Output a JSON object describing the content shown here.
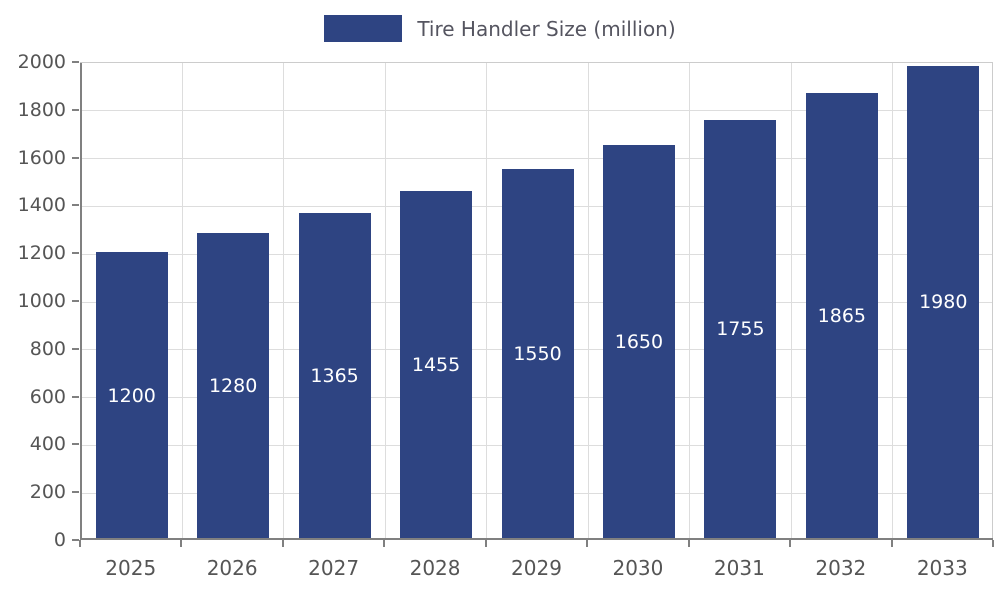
{
  "chart_data": {
    "type": "bar",
    "title": "Tire Handler Size (million)",
    "categories": [
      "2025",
      "2026",
      "2027",
      "2028",
      "2029",
      "2030",
      "2031",
      "2032",
      "2033"
    ],
    "values": [
      1200,
      1280,
      1365,
      1455,
      1550,
      1650,
      1755,
      1865,
      1980
    ],
    "xlabel": "",
    "ylabel": "",
    "ylim": [
      0,
      2000
    ],
    "ytick_step": 200,
    "grid": true,
    "legend_position": "top-center",
    "value_labels": "inside-center"
  },
  "colors": {
    "bar": "#2E4482",
    "value_label": "#FFFFFF",
    "axis_text": "#555555",
    "legend_text": "#555560",
    "grid_line": "#DDDDDD",
    "plot_border": "#CCCCCC",
    "axis_line": "#808080",
    "background": "#FFFFFF"
  }
}
